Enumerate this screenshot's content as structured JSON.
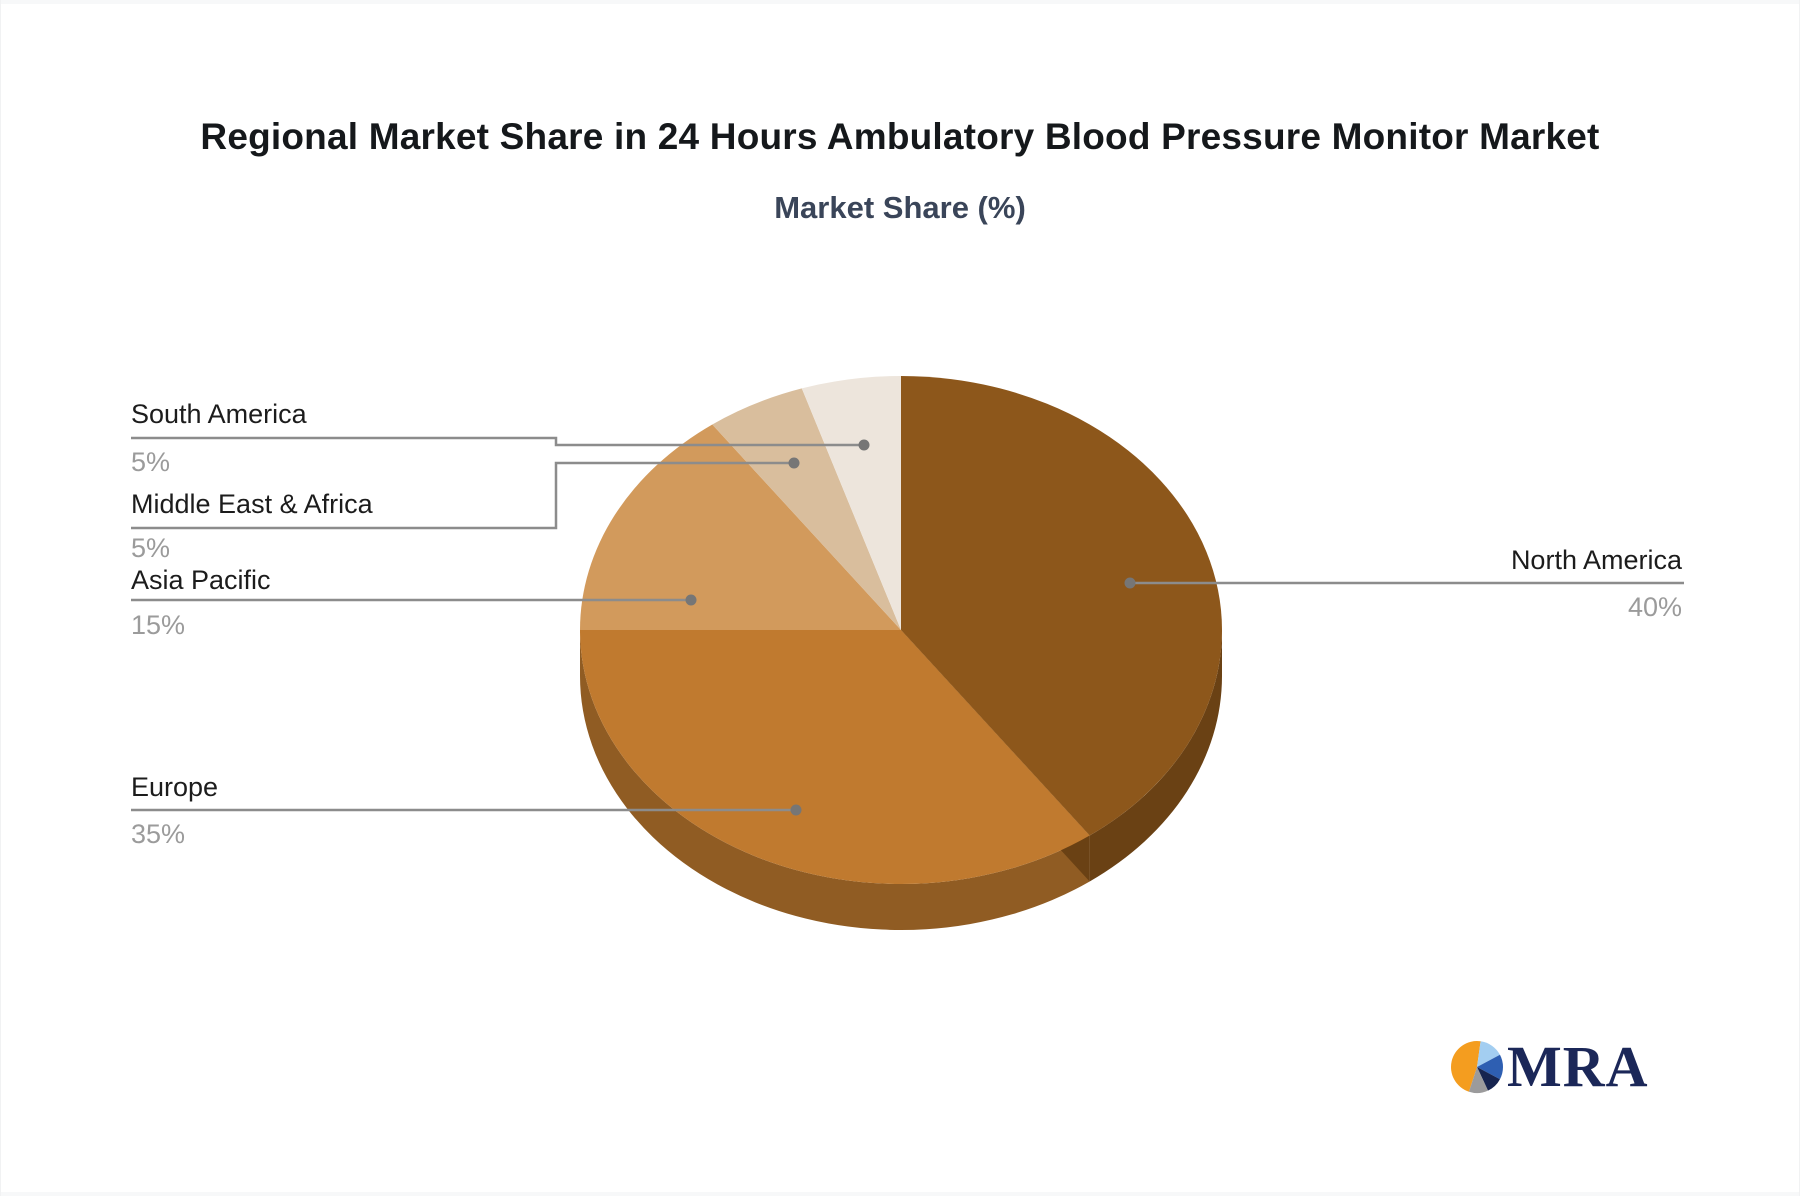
{
  "chart_data": {
    "type": "pie",
    "title": "Regional Market Share in 24 Hours Ambulatory Blood Pressure Monitor Market",
    "subtitle": "Market Share (%)",
    "unit": "%",
    "effect": "3d",
    "start_angle": "12 o'clock, clockwise",
    "legend_position": "callout-labels",
    "slices": [
      {
        "label": "North America",
        "value": 40,
        "pct_label": "40%",
        "color": "#8D571B"
      },
      {
        "label": "Europe",
        "value": 35,
        "pct_label": "35%",
        "color": "#C07A2F"
      },
      {
        "label": "Asia Pacific",
        "value": 15,
        "pct_label": "15%",
        "color": "#D29A5C"
      },
      {
        "label": "Middle East & Africa",
        "value": 5,
        "pct_label": "5%",
        "color": "#D9BE9D"
      },
      {
        "label": "South America",
        "value": 5,
        "pct_label": "5%",
        "color": "#EDE5DC"
      }
    ],
    "label_text_color": "#1c1c1c",
    "pct_text_color": "#9b9b9b",
    "connector_color": "#8c8c8c"
  },
  "logo": {
    "text": "MRA",
    "text_color": "#1b2758",
    "icon_slices": [
      {
        "name": "orange",
        "color": "#F49D1F",
        "from": 198,
        "to": 368
      },
      {
        "name": "light-blue",
        "color": "#A3CEF1",
        "from": 8,
        "to": 62
      },
      {
        "name": "mid-blue",
        "color": "#2E5FB2",
        "from": 62,
        "to": 118
      },
      {
        "name": "navy",
        "color": "#16244F",
        "from": 118,
        "to": 155
      },
      {
        "name": "gray",
        "color": "#9B9B9C",
        "from": 155,
        "to": 198
      }
    ]
  }
}
